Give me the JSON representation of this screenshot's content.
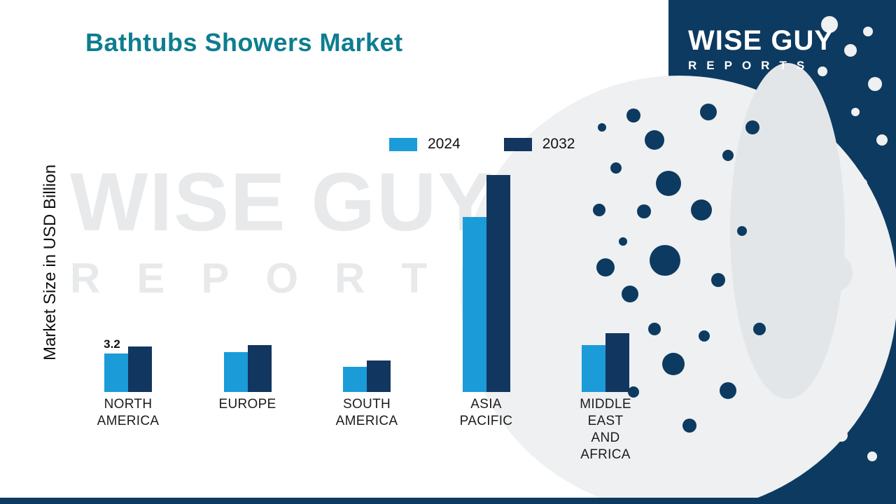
{
  "title": "Bathtubs Showers Market",
  "logo": {
    "line1": "WISE GUY",
    "line2": "REPORTS"
  },
  "watermark": {
    "line1": "WISE GUY",
    "line2": "REPORTS"
  },
  "colors": {
    "accent_teal": "#0e7d90",
    "bar_2024": "#1b9cd9",
    "bar_2032": "#11365f",
    "panel_navy": "#0d3a60",
    "circle_gray": "#eef0f1",
    "watermark_gray": "#e7e9ea"
  },
  "chart_data": {
    "type": "bar",
    "title": "Bathtubs Showers Market",
    "ylabel": "Market Size in USD Billion",
    "categories": [
      "NORTH AMERICA",
      "EUROPE",
      "SOUTH AMERICA",
      "ASIA PACIFIC",
      "MIDDLE EAST AND AFRICA"
    ],
    "series": [
      {
        "name": "2024",
        "color": "#1b9cd9",
        "values": [
          3.2,
          3.3,
          2.1,
          14.5,
          3.9
        ]
      },
      {
        "name": "2032",
        "color": "#11365f",
        "values": [
          3.8,
          3.9,
          2.6,
          18.0,
          4.9
        ]
      }
    ],
    "ylim": [
      0,
      18
    ],
    "grid": false,
    "legend_position": "top",
    "annotations": [
      {
        "category_index": 0,
        "series_index": 0,
        "text": "3.2"
      }
    ]
  }
}
